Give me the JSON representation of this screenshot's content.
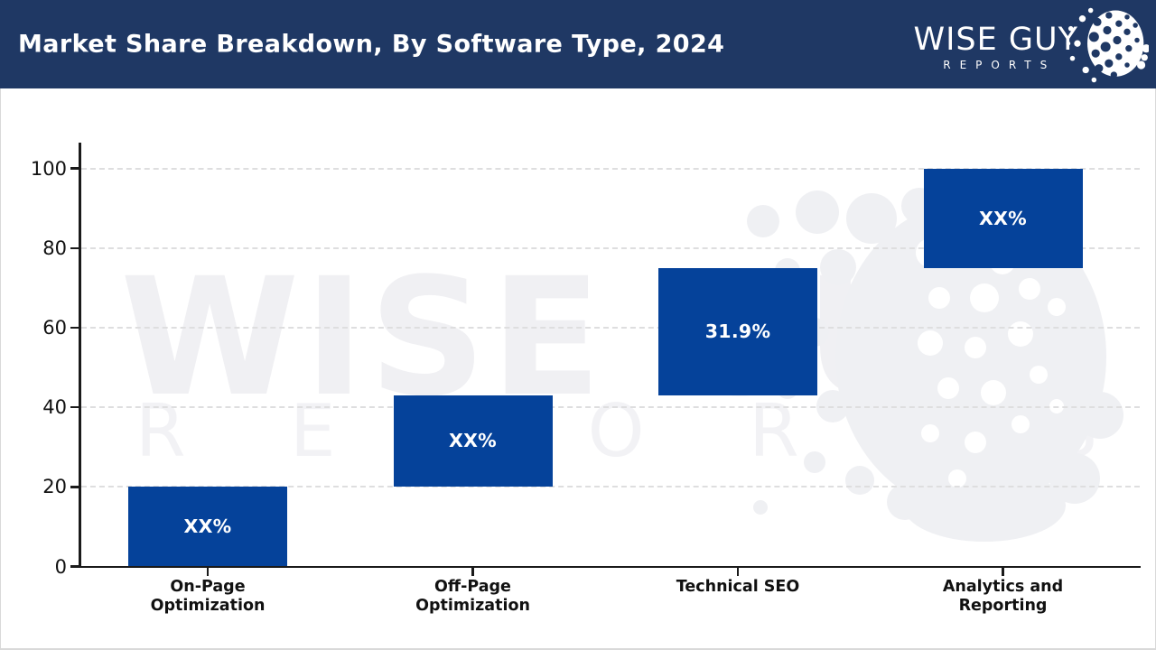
{
  "header": {
    "title": "Market Share Breakdown, By Software Type, 2024",
    "logo": {
      "name": "WISE GUY",
      "subname": "REPORTS"
    }
  },
  "watermark": {
    "line1": "WISE GUY",
    "line2": "R E P O R T S"
  },
  "colors": {
    "header_bg": "#1f3864",
    "bar": "#05429a",
    "bar_label": "#ffffff",
    "grid": "#dededf",
    "axis": "#1a1a1a",
    "watermark": "#f0f0f3"
  },
  "chart_data": {
    "type": "bar",
    "subtype": "waterfall",
    "title": "Market Share Breakdown, By Software Type, 2024",
    "categories": [
      "On-Page Optimization",
      "Off-Page Optimization",
      "Technical SEO",
      "Analytics and Reporting"
    ],
    "segments": [
      {
        "category": "On-Page Optimization",
        "lines": [
          "On-Page",
          "Optimization"
        ],
        "start": 0,
        "end": 20,
        "value_label": "XX%"
      },
      {
        "category": "Off-Page Optimization",
        "lines": [
          "Off-Page",
          "Optimization"
        ],
        "start": 20,
        "end": 43.1,
        "value_label": "XX%"
      },
      {
        "category": "Technical SEO",
        "lines": [
          "Technical SEO"
        ],
        "start": 43.1,
        "end": 75,
        "value_label": "31.9%"
      },
      {
        "category": "Analytics and Reporting",
        "lines": [
          "Analytics and",
          "Reporting"
        ],
        "start": 75,
        "end": 100,
        "value_label": "XX%"
      }
    ],
    "values_estimated": [
      20,
      23.1,
      31.9,
      25
    ],
    "yticks": [
      0,
      20,
      40,
      60,
      80,
      100
    ],
    "ylim": [
      0,
      106
    ],
    "xlabel": "",
    "ylabel": "",
    "grid": "horizontal-dashed",
    "legend": "none",
    "bar_color": "#05429a",
    "bar_label_color": "#ffffff"
  }
}
